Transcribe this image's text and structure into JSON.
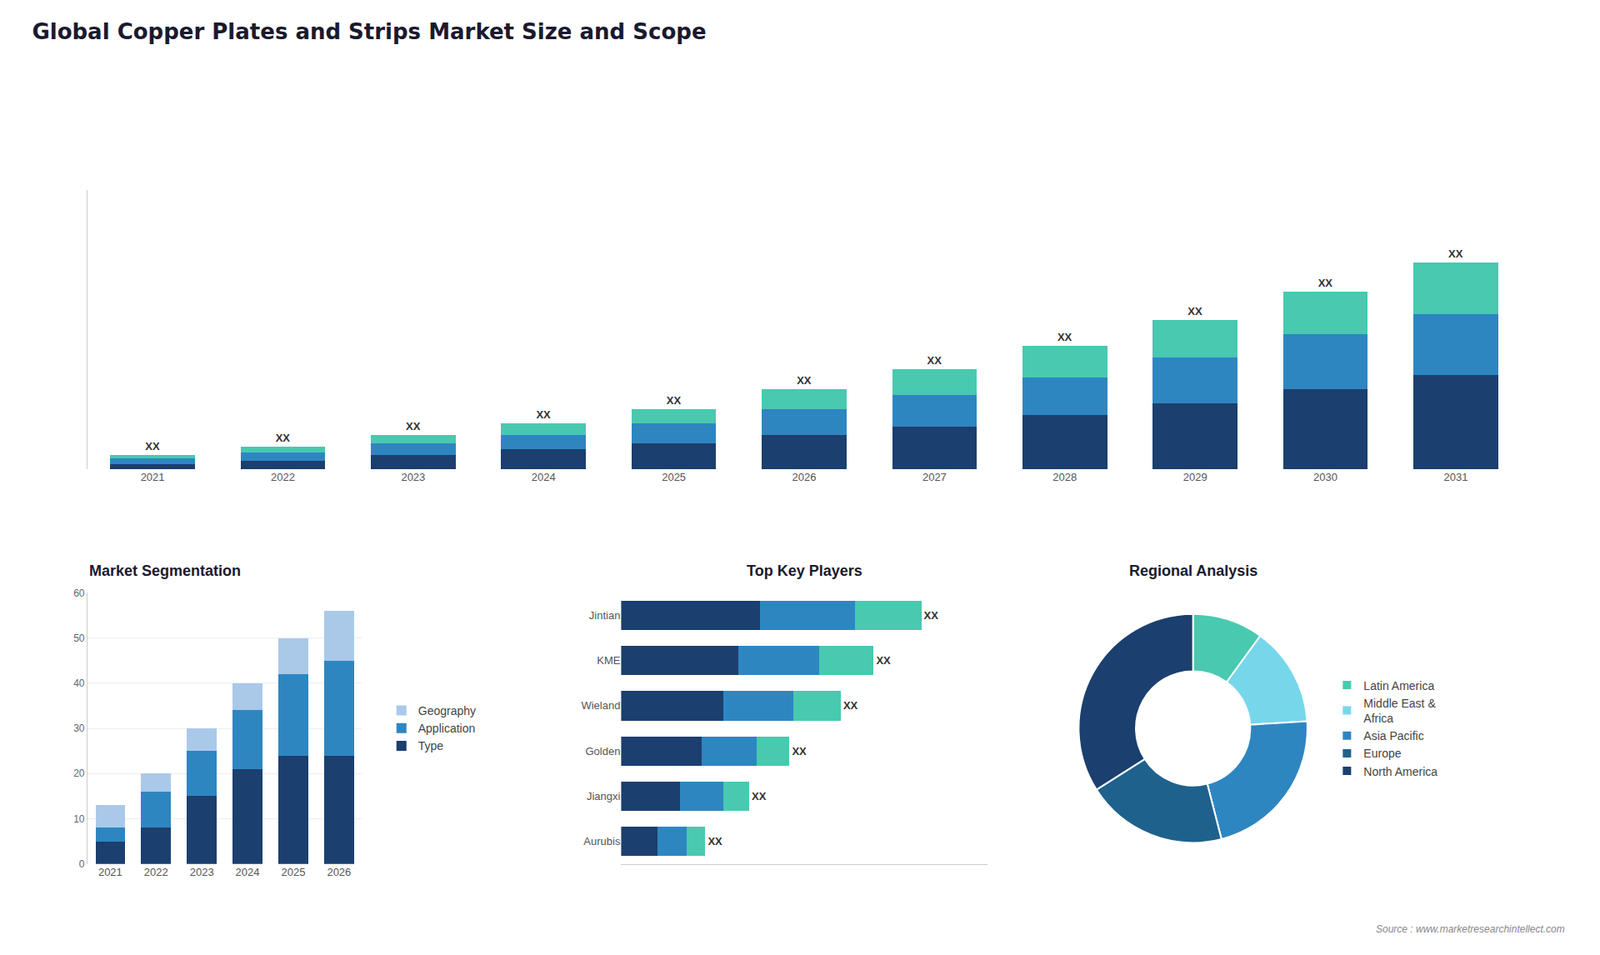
{
  "title": "Global Copper Plates and Strips Market Size and Scope",
  "annotations": [
    "Source : www.marketresearchintellect.com"
  ],
  "chart_data": [
    {
      "type": "bar",
      "stacked": true,
      "categories": [
        "2021",
        "2022",
        "2023",
        "2024",
        "2025",
        "2026",
        "2027",
        "2028",
        "2029",
        "2030",
        "2031"
      ],
      "series": [
        {
          "color": "#1b3f6e",
          "values": [
            2,
            3,
            5,
            7,
            9,
            12,
            15,
            19,
            23,
            28,
            33
          ]
        },
        {
          "color": "#2e86c1",
          "values": [
            2,
            3,
            4,
            5,
            7,
            9,
            11,
            13,
            16,
            19,
            21
          ]
        },
        {
          "color": "#48c9b0",
          "values": [
            1,
            2,
            3,
            4,
            5,
            7,
            9,
            11,
            13,
            15,
            18
          ],
          "value_labels": [
            "XX",
            "XX",
            "XX",
            "XX",
            "XX",
            "XX",
            "XX",
            "XX",
            "XX",
            "XX",
            "XX"
          ]
        }
      ],
      "ylim": [
        0,
        97.2
      ],
      "tick_labels": "x",
      "grid": false
    },
    {
      "type": "bar",
      "title": "Market Segmentation",
      "stacked": true,
      "categories": [
        "2021",
        "2022",
        "2023",
        "2024",
        "2025",
        "2026"
      ],
      "series": [
        {
          "name": "Type",
          "color": "#1b3f6e",
          "values": [
            5,
            8,
            15,
            21,
            24,
            24
          ]
        },
        {
          "name": "Application",
          "color": "#2e86c1",
          "values": [
            3,
            8,
            10,
            13,
            18,
            21
          ]
        },
        {
          "name": "Geography",
          "color": "#aac9e8",
          "values": [
            5,
            4,
            5,
            6,
            8,
            11
          ]
        }
      ],
      "ylim": [
        0,
        60
      ],
      "yticks": [
        0,
        10,
        20,
        30,
        40,
        50,
        60
      ],
      "grid": true,
      "legend": "right"
    },
    {
      "type": "bar",
      "title": "Top Key Players",
      "orientation": "horizontal",
      "stacked": true,
      "categories": [
        "Jintian",
        "KME",
        "Wieland",
        "Golden",
        "Jiangxi",
        "Aurubis"
      ],
      "series": [
        {
          "color": "#1b3f6e",
          "values": [
            38,
            32,
            28,
            22,
            16,
            10
          ]
        },
        {
          "color": "#2e86c1",
          "values": [
            26,
            22,
            19,
            15,
            12,
            8
          ]
        },
        {
          "color": "#48c9b0",
          "values": [
            18,
            15,
            13,
            9,
            7,
            5
          ],
          "value_labels": [
            "XX",
            "XX",
            "XX",
            "XX",
            "XX",
            "XX"
          ]
        }
      ],
      "xlim": [
        0,
        100
      ],
      "tick_labels": "y",
      "grid": false
    },
    {
      "type": "pie",
      "title": "Regional Analysis",
      "categories": [
        "Latin America",
        "Middle East &\nAfrica",
        "Asia Pacific",
        "Europe",
        "North America"
      ],
      "values": [
        10,
        14,
        22,
        20,
        34
      ],
      "colors": [
        "#48c9b0",
        "#76d7ea",
        "#2e86c1",
        "#1f618d",
        "#1b3f6e"
      ],
      "legend": "right"
    }
  ]
}
